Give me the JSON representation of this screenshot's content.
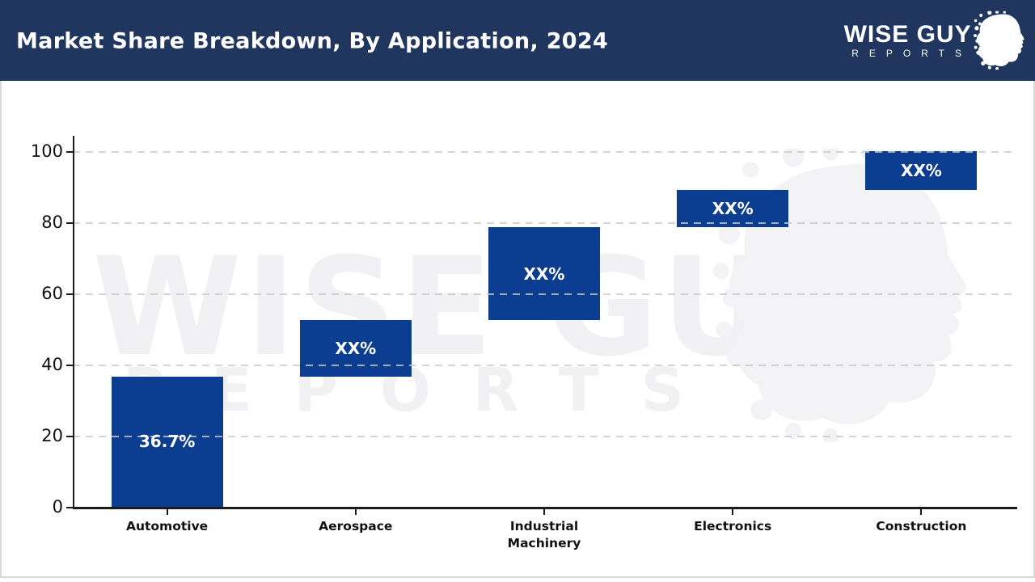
{
  "header": {
    "title": "Market Share Breakdown, By Application, 2024",
    "logo": {
      "line1": "WISE GUY",
      "line2": "REPORTS"
    }
  },
  "watermark": {
    "line1": "WISE GUY",
    "line2": "REPORTS"
  },
  "chart_data": {
    "type": "bar",
    "subtype": "waterfall",
    "title": "Market Share Breakdown, By Application, 2024",
    "categories": [
      "Automotive",
      "Aerospace",
      "Industrial\nMachinery",
      "Electronics",
      "Construction"
    ],
    "segments": [
      {
        "category": "Automotive",
        "start": 0,
        "end": 36.7,
        "label": "36.7%"
      },
      {
        "category": "Aerospace",
        "start": 36.7,
        "end": 52.5,
        "label": "XX%"
      },
      {
        "category": "Industrial Machinery",
        "start": 52.5,
        "end": 78.6,
        "label": "XX%"
      },
      {
        "category": "Electronics",
        "start": 78.6,
        "end": 89.0,
        "label": "XX%"
      },
      {
        "category": "Construction",
        "start": 89.0,
        "end": 100,
        "label": "XX%"
      }
    ],
    "yticks": [
      0,
      20,
      40,
      60,
      80,
      100
    ],
    "ylim": [
      0,
      104
    ],
    "xlabel": "",
    "ylabel": "",
    "grid": "dashed-horizontal",
    "legend": "none",
    "bar_color": "#0b3d91",
    "value_label_color": "#ffffff"
  },
  "colors": {
    "header-bg": "#20365f",
    "bar-blue": "#0b3d91",
    "axis": "#1c1c1c",
    "grid": "#c9c9c9",
    "text": "#111111",
    "watermark": "#f1f1f4",
    "label-on-bar": "#ffffff",
    "border": "#d8d8d8"
  }
}
